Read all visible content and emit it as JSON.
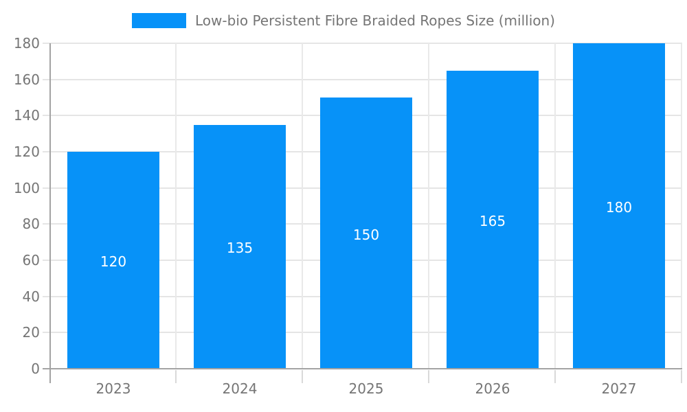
{
  "chart_data": {
    "type": "bar",
    "title": "Low-bio Persistent Fibre Braided Ropes Size (million)",
    "legend_position": "top",
    "categories": [
      "2023",
      "2024",
      "2025",
      "2026",
      "2027"
    ],
    "values": [
      120,
      135,
      150,
      165,
      180
    ],
    "bar_value_labels": [
      "120",
      "135",
      "150",
      "165",
      "180"
    ],
    "xlabel": "",
    "ylabel": "",
    "ylim": [
      0,
      180
    ],
    "ytick_step": 20,
    "yticks": [
      0,
      20,
      40,
      60,
      80,
      100,
      120,
      140,
      160,
      180
    ],
    "grid": true,
    "colors": {
      "bar": "#0792f8",
      "axis_line": "#a3a3a3",
      "gridline": "#e5e5e5",
      "axis_text": "#757575",
      "bar_label_text": "#ffffff",
      "background": "#ffffff"
    }
  }
}
